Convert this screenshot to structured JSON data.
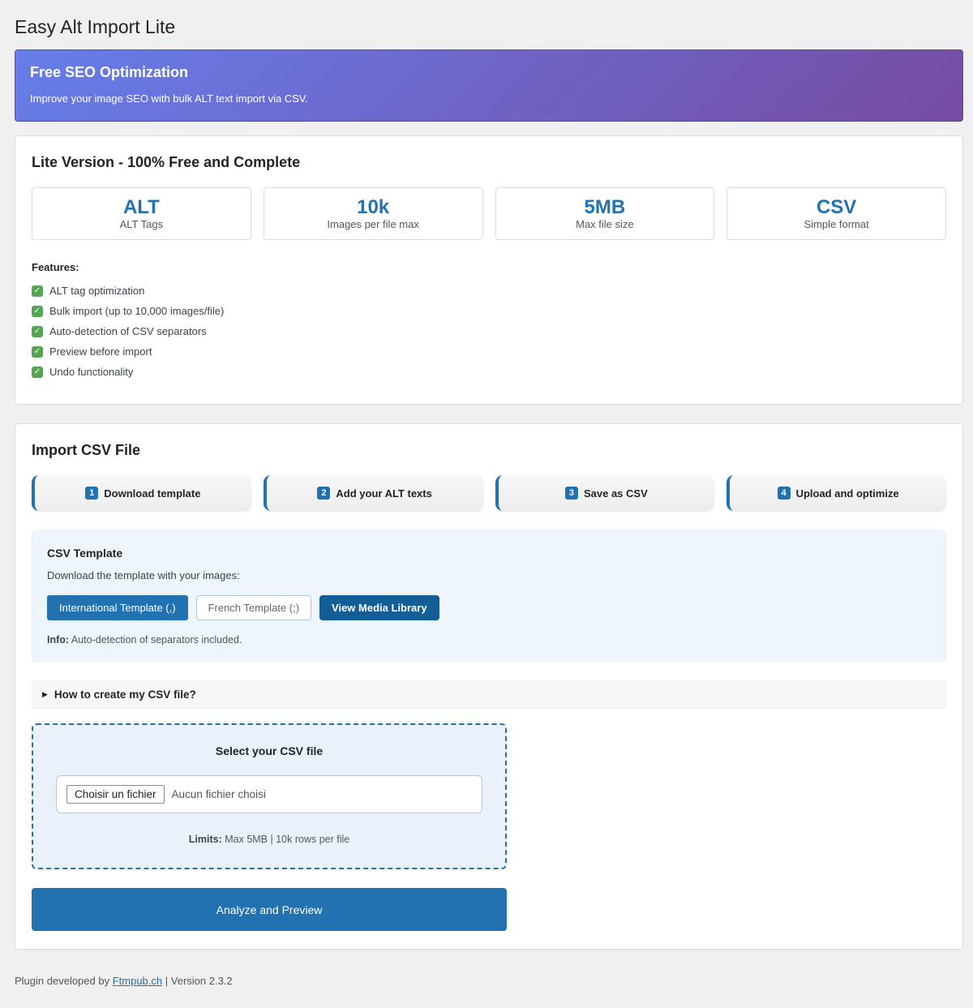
{
  "page": {
    "title": "Easy Alt Import Lite"
  },
  "banner": {
    "title": "Free SEO Optimization",
    "subtitle": "Improve your image SEO with bulk ALT text import via CSV.",
    "gradient_start": "#667eea",
    "gradient_end": "#764ba2"
  },
  "lite_card": {
    "title": "Lite Version - 100% Free and Complete",
    "stats": [
      {
        "value": "ALT",
        "label": "ALT Tags"
      },
      {
        "value": "10k",
        "label": "Images per file max"
      },
      {
        "value": "5MB",
        "label": "Max file size"
      },
      {
        "value": "CSV",
        "label": "Simple format"
      }
    ],
    "features_title": "Features:",
    "features": [
      "ALT tag optimization",
      "Bulk import (up to 10,000 images/file)",
      "Auto-detection of CSV separators",
      "Preview before import",
      "Undo functionality"
    ],
    "check_glyph": "✓",
    "check_color": "#55a555"
  },
  "import_card": {
    "title": "Import CSV File",
    "steps": [
      {
        "number": "1",
        "label": "Download template"
      },
      {
        "number": "2",
        "label": "Add your ALT texts"
      },
      {
        "number": "3",
        "label": "Save as CSV"
      },
      {
        "number": "4",
        "label": "Upload and optimize"
      }
    ],
    "template_box": {
      "title": "CSV Template",
      "description": "Download the template with your images:",
      "international_button": "International Template (,)",
      "french_button": "French Template (;)",
      "media_library_button": "View Media Library",
      "info_label": "Info:",
      "info_text": "Auto-detection of separators included."
    },
    "accordion": {
      "arrow": "▶",
      "label": "How to create my CSV file?"
    },
    "upload": {
      "title": "Select your CSV file",
      "file_button": "Choisir un fichier",
      "file_status": "Aucun fichier choisi",
      "limits_label": "Limits:",
      "limits_text": "Max 5MB | 10k rows per file"
    },
    "analyze_button": "Analyze and Preview"
  },
  "footer": {
    "prefix": "Plugin developed by",
    "link": "Ftmpub.ch",
    "suffix": "| Version 2.3.2"
  },
  "colors": {
    "accent_blue": "#2271b1",
    "media_button_blue": "#135e96",
    "check_green": "#55a555",
    "page_background": "#f0f0f1"
  }
}
